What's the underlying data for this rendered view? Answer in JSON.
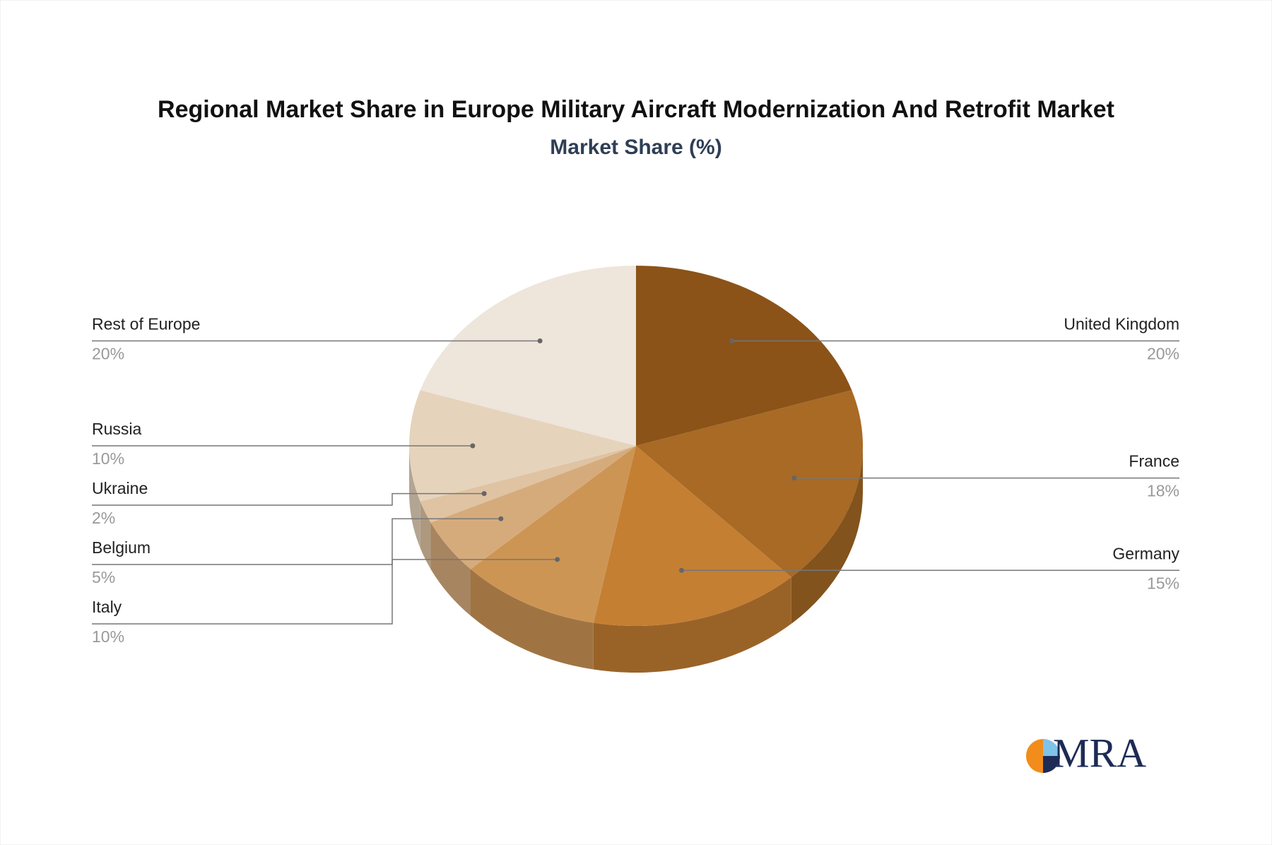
{
  "chart_data": {
    "type": "pie",
    "title": "Regional Market Share in Europe Military Aircraft Modernization And Retrofit Market",
    "subtitle": "Market Share (%)",
    "categories": [
      "United Kingdom",
      "France",
      "Germany",
      "Italy",
      "Belgium",
      "Ukraine",
      "Russia",
      "Rest of Europe"
    ],
    "values": [
      20,
      18,
      15,
      10,
      5,
      2,
      10,
      20
    ],
    "value_labels": [
      "20%",
      "18%",
      "15%",
      "10%",
      "5%",
      "2%",
      "10%",
      "20%"
    ],
    "colors": [
      "#8b5318",
      "#a86a25",
      "#c47f33",
      "#cd9554",
      "#d6ab7c",
      "#dfc3a2",
      "#e6d3bc",
      "#eee5db"
    ]
  },
  "logo_text": "MRA"
}
